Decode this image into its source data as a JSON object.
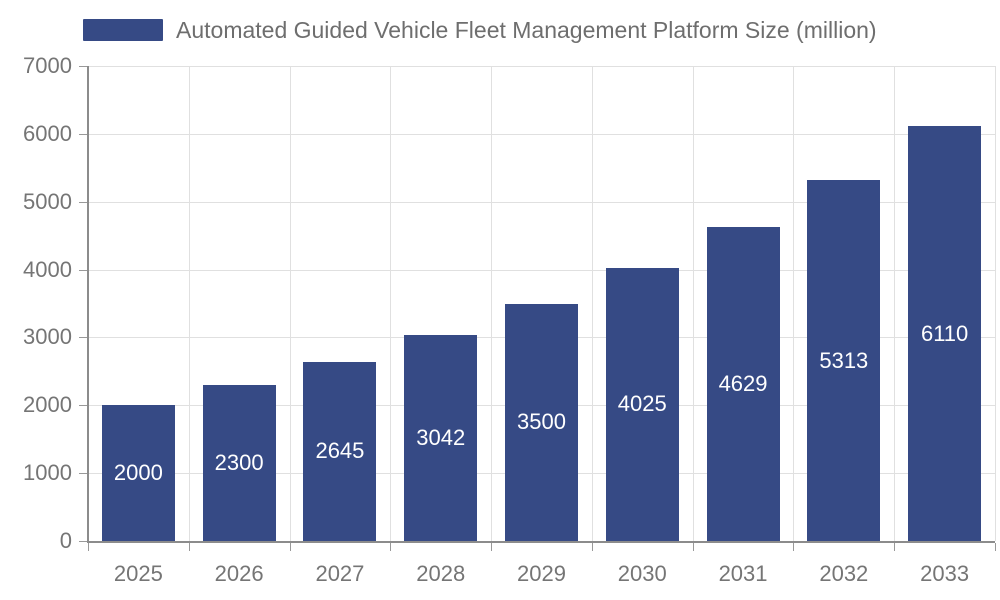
{
  "legend": {
    "label": "Automated Guided Vehicle Fleet Management Platform Size (million)"
  },
  "colors": {
    "bar": "#364a85",
    "bar_label": "#ffffff",
    "grid_line": "#e0e0e0",
    "axis_line": "#8c8c8c",
    "tick": "#999999",
    "axis_text": "#757575",
    "legend_text": "#6e6e6e",
    "background": "#ffffff"
  },
  "chart_data": {
    "type": "bar",
    "title": "Automated Guided Vehicle Fleet Management Platform Size (million)",
    "categories": [
      "2025",
      "2026",
      "2027",
      "2028",
      "2029",
      "2030",
      "2031",
      "2032",
      "2033"
    ],
    "values": [
      2000,
      2300,
      2645,
      3042,
      3500,
      4025,
      4629,
      5313,
      6110
    ],
    "xlabel": "",
    "ylabel": "",
    "ylim": [
      0,
      7000
    ],
    "yticks": [
      0,
      1000,
      2000,
      3000,
      4000,
      5000,
      6000,
      7000
    ],
    "grid": true,
    "legend_position": "top-left",
    "bar_value_labels": "inside-middle"
  }
}
